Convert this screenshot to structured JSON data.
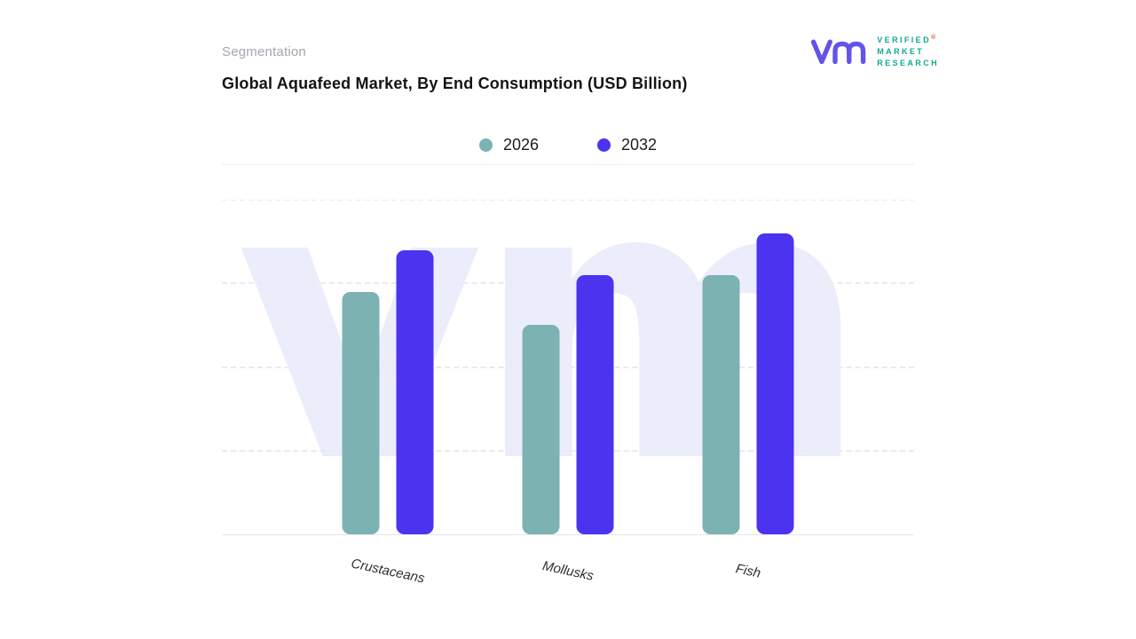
{
  "header": {
    "eyebrow": "Segmentation",
    "title": "Global Aquafeed Market, By End Consumption (USD Billion)"
  },
  "logo": {
    "lines": [
      "VERIFIED",
      "MARKET",
      "RESEARCH"
    ],
    "registered": "®",
    "monogram_color": "#6353e8",
    "text_color": "#12a793"
  },
  "colors": {
    "series_2026": "#7db2b3",
    "series_2032": "#4b33f0",
    "gridline": "#eaeaf2",
    "watermark": "#ecedfb"
  },
  "chart_data": {
    "type": "bar",
    "title": "Global Aquafeed Market, By End Consumption (USD Billion)",
    "categories": [
      "Crustaceans",
      "Mollusks",
      "Fish"
    ],
    "series": [
      {
        "name": "2026",
        "color": "#7db2b3",
        "values": [
          2.9,
          2.5,
          3.1
        ]
      },
      {
        "name": "2032",
        "color": "#4b33f0",
        "values": [
          3.4,
          3.1,
          3.6
        ]
      }
    ],
    "xlabel": "",
    "ylabel": "",
    "ylim": [
      0,
      4
    ],
    "gridlines_at": [
      1,
      2,
      3,
      4
    ],
    "grid": "horizontal-dashed",
    "legend_position": "top-center",
    "watermark_text": "vm"
  }
}
